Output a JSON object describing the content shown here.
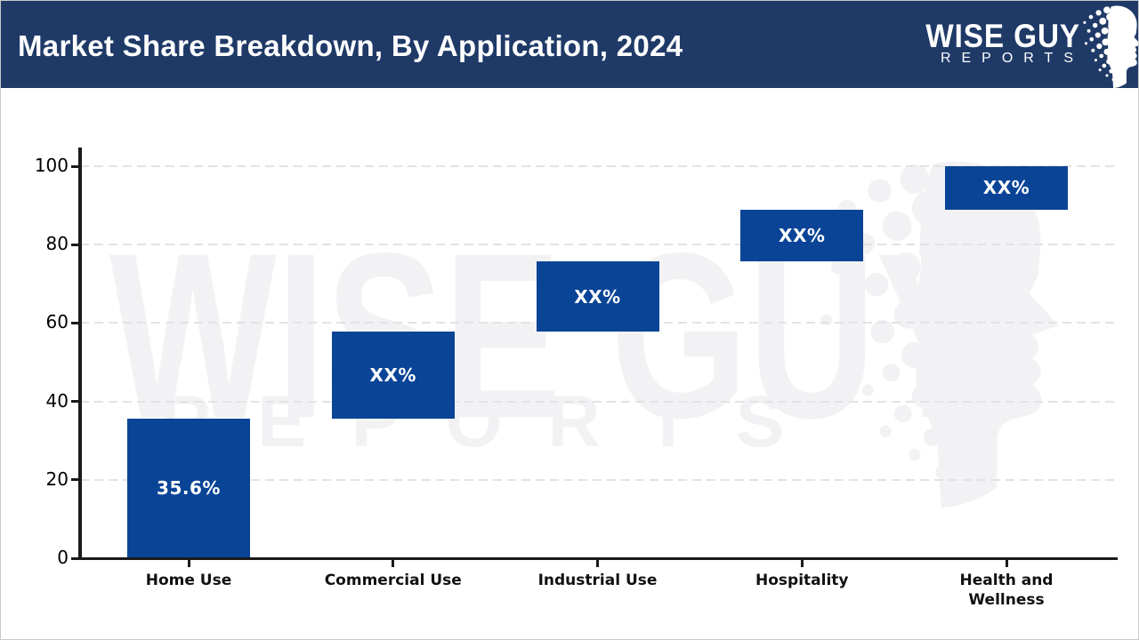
{
  "header": {
    "title": "Market Share Breakdown, By Application, 2024",
    "logo": {
      "wordmark": "WISE GUY",
      "subtitle": "REPORTS"
    }
  },
  "watermark": {
    "wordmark": "WISE GUY",
    "subtitle": "REPORTS"
  },
  "chart_data": {
    "type": "bar",
    "subtype": "waterfall",
    "title": "Market Share Breakdown, By Application, 2024",
    "categories": [
      "Home Use",
      "Commercial Use",
      "Industrial Use",
      "Hospitality",
      "Health and Wellness"
    ],
    "series": [
      {
        "name": "Market share (%)",
        "starts": [
          0,
          35.6,
          57.8,
          75.7,
          88.9
        ],
        "ends": [
          35.6,
          57.8,
          75.7,
          88.9,
          100
        ],
        "values": [
          35.6,
          22.2,
          17.9,
          13.2,
          11.1
        ]
      }
    ],
    "bar_labels": [
      "35.6%",
      "XX%",
      "XX%",
      "XX%",
      "XX%"
    ],
    "xlabel": "",
    "ylabel": "",
    "ylim": [
      0,
      100
    ],
    "yticks": [
      0,
      20,
      40,
      60,
      80,
      100
    ],
    "grid": "horizontal-dashed",
    "legend": "none",
    "colors": {
      "bar": "#0a4496",
      "bar_label": "#ffffff",
      "header_bg": "#1f3a67",
      "header_text": "#ffffff",
      "grid": "#e3e3e5",
      "axis": "#1a1a1a",
      "watermark": "#f2f2f4"
    }
  }
}
